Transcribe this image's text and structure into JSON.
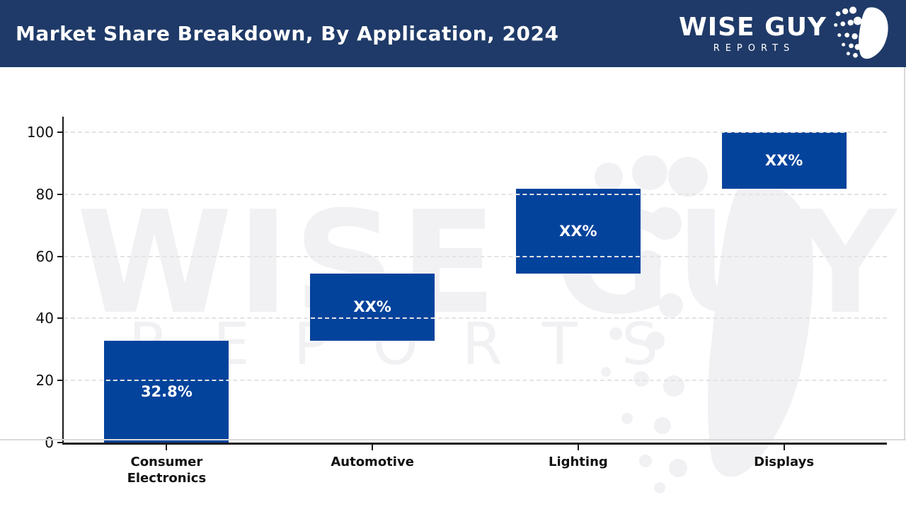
{
  "header": {
    "title": "Market Share Breakdown, By Application, 2024",
    "logo": {
      "brand": "WISE GUY",
      "sub": "REPORTS"
    }
  },
  "watermark": {
    "line1": "WISE GUY",
    "line2": "REPORTS"
  },
  "chart_data": {
    "type": "bar",
    "subtype": "waterfall",
    "title": "Market Share Breakdown, By Application, 2024",
    "categories": [
      "Consumer Electronics",
      "Automotive",
      "Lighting",
      "Displays"
    ],
    "series": [
      {
        "name": "Market Share",
        "segments": [
          {
            "category": "Consumer Electronics",
            "start": 0,
            "end": 32.8,
            "value": 32.8,
            "label": "32.8%"
          },
          {
            "category": "Automotive",
            "start": 32.8,
            "end": 54.5,
            "value": 21.7,
            "label": "XX%"
          },
          {
            "category": "Lighting",
            "start": 54.5,
            "end": 81.8,
            "value": 27.3,
            "label": "XX%"
          },
          {
            "category": "Displays",
            "start": 81.8,
            "end": 100,
            "value": 18.2,
            "label": "XX%"
          }
        ]
      }
    ],
    "xlabel": "",
    "ylabel": "",
    "ylim": [
      0,
      100
    ],
    "yticks": [
      0,
      20,
      40,
      60,
      80,
      100
    ],
    "grid": "horizontal-dashed",
    "legend": "none"
  },
  "colors": {
    "header_bg": "#1f3a68",
    "bar": "#04439c",
    "bar_label": "#ffffff",
    "grid": "#e3e3e3",
    "axis": "#1a1a1a",
    "watermark": "#f1f1f4",
    "border": "#d9d9d9"
  }
}
